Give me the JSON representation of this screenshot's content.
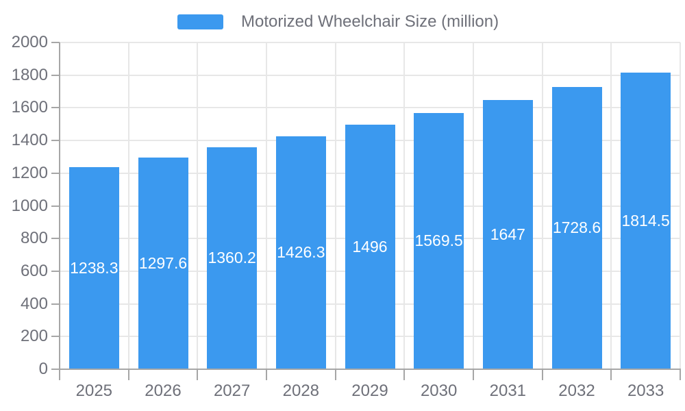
{
  "legend": {
    "label": "Motorized Wheelchair Size (million)"
  },
  "chart_data": {
    "type": "bar",
    "title": "",
    "categories": [
      "2025",
      "2026",
      "2027",
      "2028",
      "2029",
      "2030",
      "2031",
      "2032",
      "2033"
    ],
    "series": [
      {
        "name": "Motorized Wheelchair Size (million)",
        "values": [
          1238.3,
          1297.6,
          1360.2,
          1426.3,
          1496,
          1569.5,
          1647,
          1728.6,
          1814.5
        ]
      }
    ],
    "bar_value_labels": [
      "1238.3",
      "1297.6",
      "1360.2",
      "1426.3",
      "1496",
      "1569.5",
      "1647",
      "1728.6",
      "1814.5"
    ],
    "xlabel": "",
    "ylabel": "",
    "ylim": [
      0,
      2000
    ],
    "ytick_step": 200,
    "ytick_labels": [
      "0",
      "200",
      "400",
      "600",
      "800",
      "1000",
      "1200",
      "1400",
      "1600",
      "1800",
      "2000"
    ],
    "grid": true,
    "legend_position": "top",
    "colors": {
      "bar": "#3B99EF",
      "bar_label_text": "#FFFFFF",
      "axis_line": "#A6A6A6",
      "grid_line": "#E7E7E7",
      "axis_label_text": "#6E7079",
      "legend_text": "#6E7079",
      "background": "#FFFFFF"
    }
  }
}
